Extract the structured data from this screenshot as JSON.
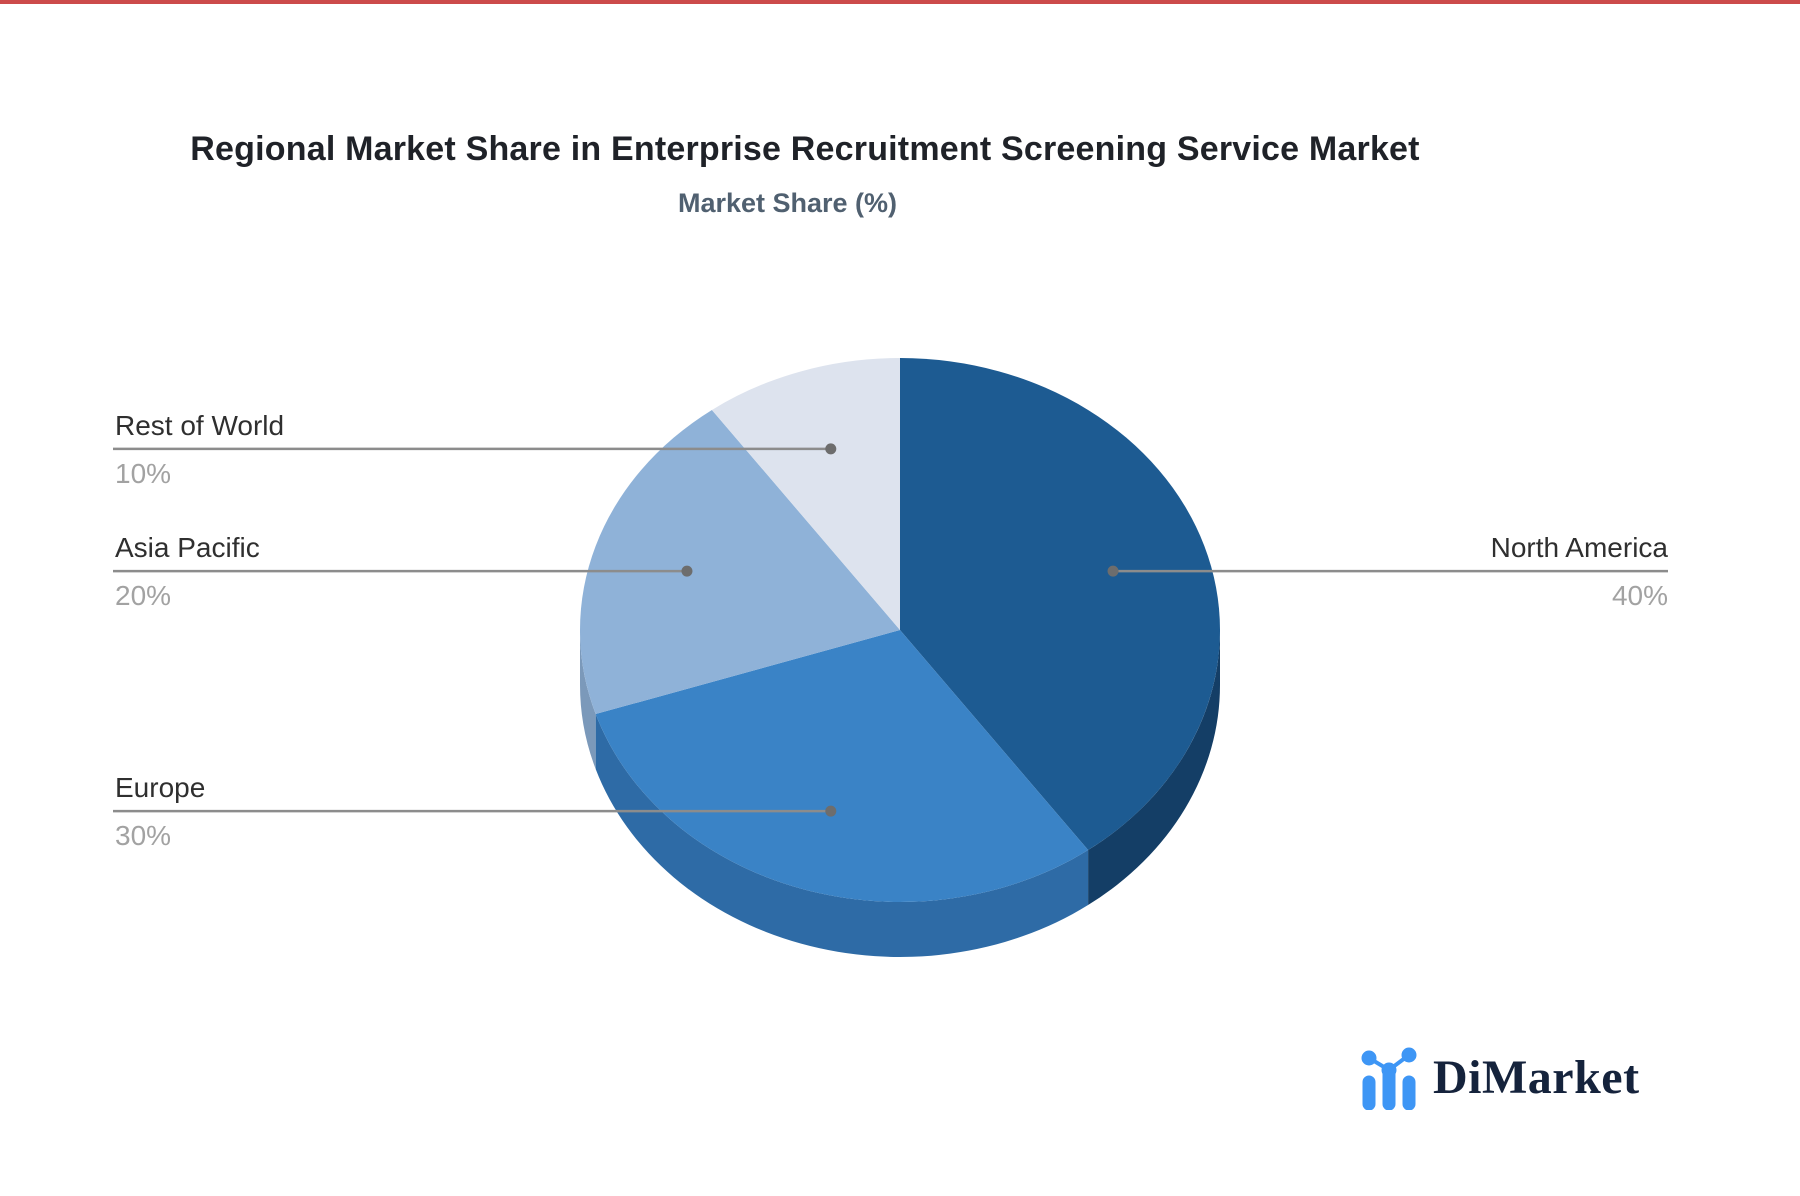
{
  "page": {
    "top_bar_color": "#cc4b4b",
    "background_color": "#ffffff"
  },
  "chart_data": {
    "type": "pie",
    "title": "Regional Market Share in Enterprise Recruitment Screening Service Market",
    "subtitle": "Market Share (%)",
    "style": "3d-pie",
    "start_angle_deg": 0,
    "direction": "clockwise",
    "legend": false,
    "categories": [
      "North America",
      "Europe",
      "Asia Pacific",
      "Rest of World"
    ],
    "values": [
      40,
      30,
      20,
      10
    ],
    "slices": [
      {
        "label": "North America",
        "value": 40,
        "pct_label": "40%",
        "color": "#1d5b92",
        "side_color": "#143e66",
        "label_side": "right"
      },
      {
        "label": "Europe",
        "value": 30,
        "pct_label": "30%",
        "color": "#3a83c6",
        "side_color": "#2e6ba6",
        "label_side": "left"
      },
      {
        "label": "Asia Pacific",
        "value": 20,
        "pct_label": "20%",
        "color": "#8fb2d8",
        "side_color": "#7b99ba",
        "label_side": "left"
      },
      {
        "label": "Rest of World",
        "value": 10,
        "pct_label": "10%",
        "color": "#dde3ee",
        "side_color": "#c8d2e2",
        "label_side": "left"
      }
    ],
    "label_text_color": "#2f2f2f",
    "pct_text_color": "#a2a2a2",
    "connector_color": "#8c8c8c",
    "connector_dot_color": "#6d6d6d"
  },
  "logo": {
    "text": "DiMarket",
    "icon": "bar-chart-with-trendline-icon",
    "icon_color": "#3e96f5",
    "text_color": "#15233c"
  }
}
